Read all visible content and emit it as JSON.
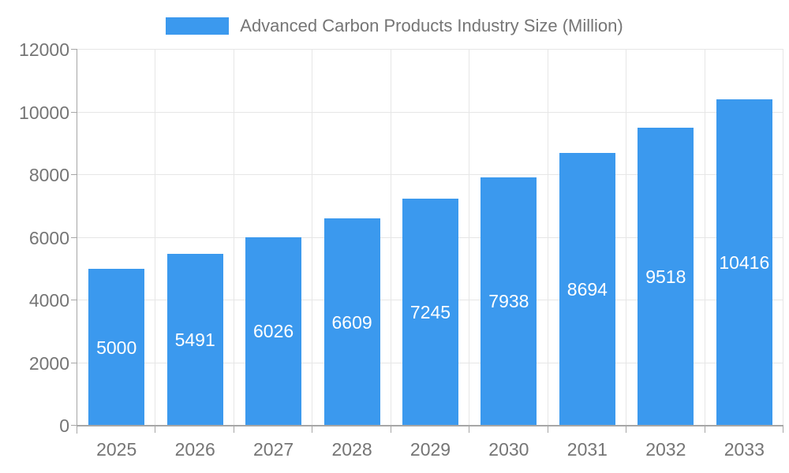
{
  "legend": {
    "label": "Advanced Carbon Products Industry Size (Million)"
  },
  "chart_data": {
    "type": "bar",
    "title": "Advanced Carbon Products Industry Size (Million)",
    "series": [
      {
        "name": "Advanced Carbon Products Industry Size (Million)",
        "values": [
          5000,
          5491,
          6026,
          6609,
          7245,
          7938,
          8694,
          9518,
          10416
        ]
      }
    ],
    "categories": [
      "2025",
      "2026",
      "2027",
      "2028",
      "2029",
      "2030",
      "2031",
      "2032",
      "2033"
    ],
    "xlabel": "",
    "ylabel": "",
    "ylim": [
      0,
      12000
    ],
    "yticks": [
      0,
      2000,
      4000,
      6000,
      8000,
      10000,
      12000
    ],
    "grid": "on",
    "legend_position": "top",
    "bar_labels_shown": true,
    "colors": {
      "bar": "#3b99ee",
      "value_label": "#ffffff",
      "axis_text": "#757575",
      "gridline": "#e6e6e6",
      "axis_line": "#a6a6a6"
    }
  }
}
